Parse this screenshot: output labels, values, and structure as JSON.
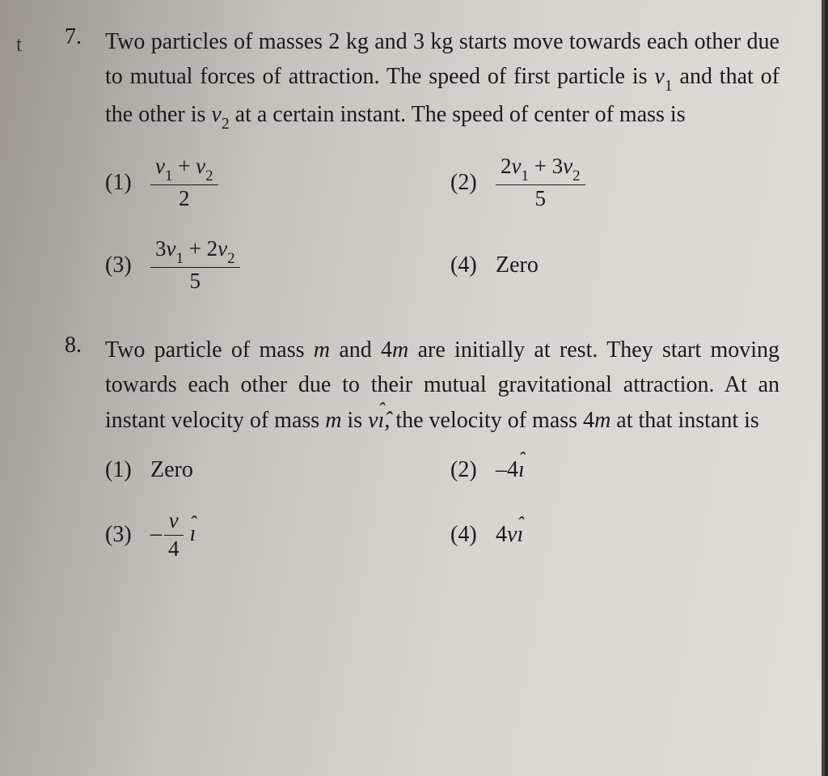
{
  "page": {
    "background_gradient": [
      "#9a9590",
      "#c5c2bd",
      "#d8d5d0",
      "#e0ddd8"
    ],
    "text_color": "#1a1a1a",
    "left_margin_mark": "t",
    "font_family": "Times New Roman",
    "body_fontsize": 28
  },
  "questions": [
    {
      "number": "7.",
      "text_segments": [
        {
          "t": "Two particles of masses 2 kg and 3 kg starts move towards each other due to mutual forces of attraction. The speed of first particle is "
        },
        {
          "t": "v",
          "style": "italic"
        },
        {
          "t": "1",
          "style": "sub"
        },
        {
          "t": " and that of the other is "
        },
        {
          "t": "v",
          "style": "italic"
        },
        {
          "t": "2",
          "style": "sub"
        },
        {
          "t": " at a certain instant. The speed of center of mass is"
        }
      ],
      "options": [
        {
          "label": "(1)",
          "type": "fraction",
          "num_parts": [
            {
              "t": "v",
              "s": "i"
            },
            {
              "t": "1",
              "s": "sub"
            },
            {
              "t": " + "
            },
            {
              "t": "v",
              "s": "i"
            },
            {
              "t": "2",
              "s": "sub"
            }
          ],
          "den": "2"
        },
        {
          "label": "(2)",
          "type": "fraction",
          "num_parts": [
            {
              "t": "2"
            },
            {
              "t": "v",
              "s": "i"
            },
            {
              "t": "1",
              "s": "sub"
            },
            {
              "t": " + 3"
            },
            {
              "t": "v",
              "s": "i"
            },
            {
              "t": "2",
              "s": "sub"
            }
          ],
          "den": "5"
        },
        {
          "label": "(3)",
          "type": "fraction",
          "num_parts": [
            {
              "t": "3"
            },
            {
              "t": "v",
              "s": "i"
            },
            {
              "t": "1",
              "s": "sub"
            },
            {
              "t": " + 2"
            },
            {
              "t": "v",
              "s": "i"
            },
            {
              "t": "2",
              "s": "sub"
            }
          ],
          "den": "5"
        },
        {
          "label": "(4)",
          "type": "text",
          "value": "Zero"
        }
      ]
    },
    {
      "number": "8.",
      "text_segments": [
        {
          "t": "Two particle of mass "
        },
        {
          "t": "m",
          "style": "italic"
        },
        {
          "t": " and 4"
        },
        {
          "t": "m",
          "style": "italic"
        },
        {
          "t": " are initially at rest. They start moving towards each other due to their mutual gravitational attraction. At an instant velocity of mass "
        },
        {
          "t": "m",
          "style": "italic"
        },
        {
          "t": " is "
        },
        {
          "t": "v",
          "style": "italic"
        },
        {
          "t": "ı̂",
          "style": "hat-italic"
        },
        {
          "t": ", the velocity of mass 4"
        },
        {
          "t": "m",
          "style": "italic"
        },
        {
          "t": " at that instant is"
        }
      ],
      "options": [
        {
          "label": "(1)",
          "type": "text",
          "value": "Zero"
        },
        {
          "label": "(2)",
          "type": "expr",
          "parts": [
            {
              "t": "–4"
            },
            {
              "t": "ı",
              "s": "hat-i"
            }
          ]
        },
        {
          "label": "(3)",
          "type": "neg-fraction",
          "num_parts": [
            {
              "t": "v",
              "s": "i"
            }
          ],
          "den": "4",
          "suffix_parts": [
            {
              "t": " "
            },
            {
              "t": "ı",
              "s": "hat-i"
            }
          ]
        },
        {
          "label": "(4)",
          "type": "expr",
          "parts": [
            {
              "t": "4"
            },
            {
              "t": "v",
              "s": "i"
            },
            {
              "t": "ı",
              "s": "hat-i"
            }
          ]
        }
      ]
    }
  ]
}
